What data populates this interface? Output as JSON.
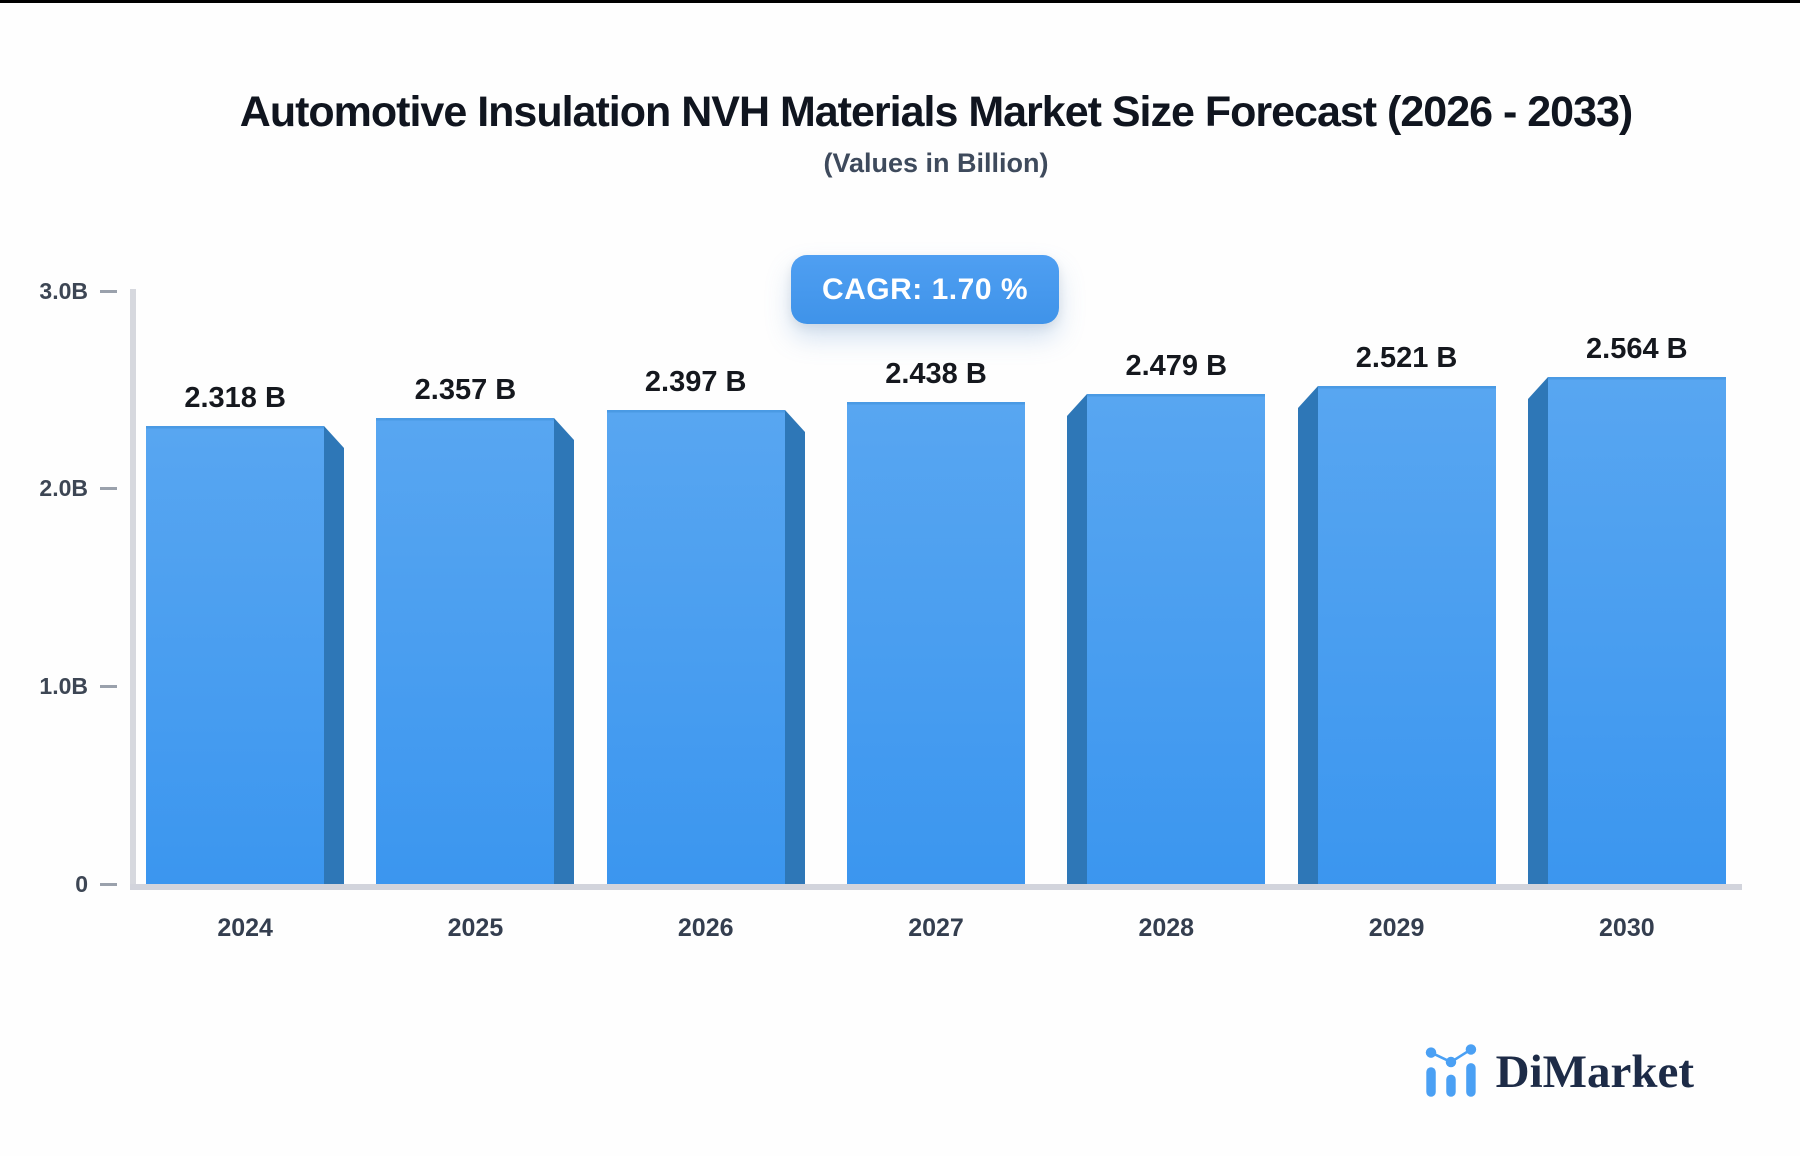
{
  "page": {
    "background": "#fefefe",
    "top_border_color": "#000000"
  },
  "header": {
    "title": "Automotive Insulation NVH Materials Market Size Forecast (2026 - 2033)",
    "subtitle": "(Values in Billion)"
  },
  "cagr_badge": {
    "label": "CAGR: 1.70 %",
    "background": "#459aec",
    "text_color": "#ffffff"
  },
  "chart_data": {
    "type": "bar",
    "title": "Automotive Insulation NVH Materials Market Size Forecast (2026 - 2033)",
    "subtitle": "(Values in Billion)",
    "categories": [
      "2024",
      "2025",
      "2026",
      "2027",
      "2028",
      "2029",
      "2030"
    ],
    "values": [
      2.318,
      2.357,
      2.397,
      2.438,
      2.479,
      2.521,
      2.564
    ],
    "value_labels": [
      "2.318 B",
      "2.357 B",
      "2.397 B",
      "2.438 B",
      "2.479 B",
      "2.521 B",
      "2.564 B"
    ],
    "unit": "Billion",
    "cagr": "1.70 %",
    "xlabel": "",
    "ylabel": "",
    "ylim": [
      0,
      3.0
    ],
    "yticks": [
      {
        "value": 3.0,
        "label": "3.0B"
      },
      {
        "value": 2.0,
        "label": "2.0B"
      },
      {
        "value": 1.0,
        "label": "1.0B"
      },
      {
        "value": 0,
        "label": "0"
      }
    ],
    "grid": false,
    "legend": false,
    "bar_style": "3d-beveled",
    "bar_face_top_color": "#58a6f1",
    "bar_face_bottom_color": "#3b96ef",
    "bar_side_color": "#2e77b7",
    "bar_top_edge_color": "#3f8fd9",
    "axis_line_color": "#d6d8de",
    "tick_color": "#9aa1ac",
    "axis_label_color": "#3d4654",
    "value_label_color": "#15181e"
  },
  "branding": {
    "name": "DiMarket",
    "icon": "mini-bar-chart-icon",
    "icon_color": "#4aa0f4",
    "text_color": "#1d2b47"
  }
}
